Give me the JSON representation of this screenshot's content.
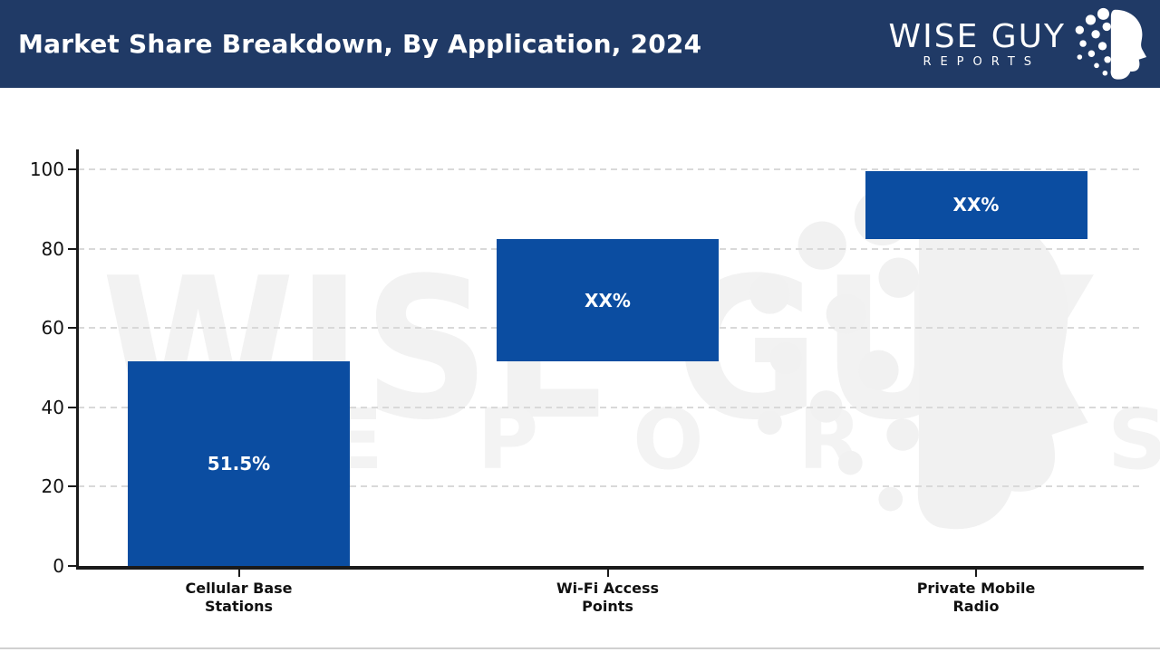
{
  "header": {
    "title": "Market Share Breakdown, By Application, 2024",
    "bg_color": "#203a66",
    "logo": {
      "line1": "WISE GUY",
      "line2": "REPORTS"
    }
  },
  "watermark": {
    "line1": "WISE GUY",
    "line2": "R E P O R T S"
  },
  "chart_data": {
    "type": "bar",
    "subtype": "waterfall",
    "title": "Market Share Breakdown, By Application, 2024",
    "categories": [
      [
        "Cellular Base",
        "Stations"
      ],
      [
        "Wi-Fi Access",
        "Points"
      ],
      [
        "Private Mobile",
        "Radio"
      ]
    ],
    "segments": [
      {
        "category": "Cellular Base Stations",
        "start": 0,
        "end": 51.5,
        "label": "51.5%"
      },
      {
        "category": "Wi-Fi Access Points",
        "start": 51.5,
        "end": 82.5,
        "label": "XX%"
      },
      {
        "category": "Private Mobile Radio",
        "start": 82.5,
        "end": 99.5,
        "label": "XX%"
      }
    ],
    "yticks": [
      0,
      20,
      40,
      60,
      80,
      100
    ],
    "ylim": [
      0,
      105
    ],
    "bar_color": "#0b4da1",
    "bar_label_color": "#ffffff",
    "grid": "horizontal-dashed",
    "grid_color": "#d9d9d9",
    "axis_color": "#1a1a1a",
    "legend": "none"
  }
}
